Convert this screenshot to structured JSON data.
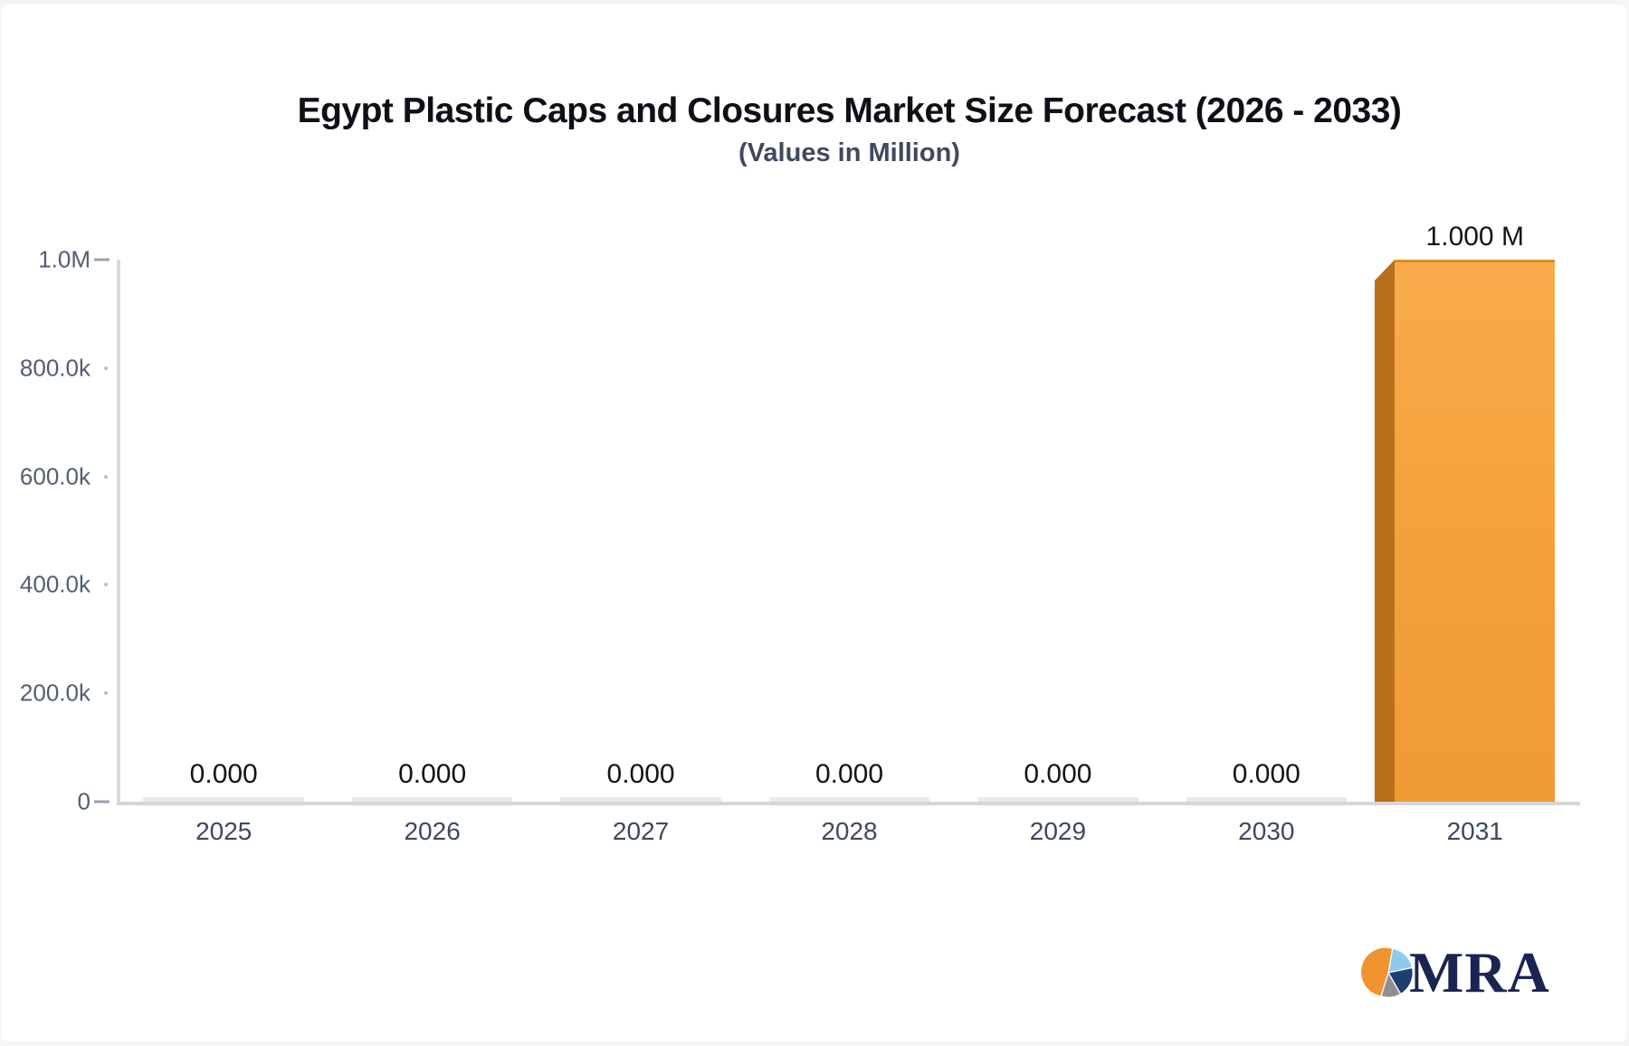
{
  "title": "Egypt Plastic Caps and Closures Market Size Forecast (2026 - 2033)",
  "subtitle": "(Values in Million)",
  "chart_data": {
    "type": "bar",
    "title": "Egypt Plastic Caps and Closures Market Size Forecast (2026 - 2033)",
    "subtitle": "(Values in Million)",
    "categories": [
      "2025",
      "2026",
      "2027",
      "2028",
      "2029",
      "2030",
      "2031"
    ],
    "values": [
      0,
      0,
      0,
      0,
      0,
      0,
      1000000
    ],
    "value_labels": [
      "0.000",
      "0.000",
      "0.000",
      "0.000",
      "0.000",
      "0.000",
      "1.000 M"
    ],
    "xlabel": "",
    "ylabel": "",
    "ylim": [
      0,
      1000000
    ],
    "y_ticks": [
      {
        "label": "1.0M",
        "major": true
      },
      {
        "label": "800.0k",
        "major": false
      },
      {
        "label": "600.0k",
        "major": false
      },
      {
        "label": "400.0k",
        "major": false
      },
      {
        "label": "200.0k",
        "major": false
      },
      {
        "label": "0",
        "major": true
      }
    ],
    "grid": false,
    "legend": "none",
    "bar_color": "#f4a23c",
    "bar_side_color": "#b8701a",
    "zero_bar_color": "#e9eaec"
  },
  "logo": {
    "text": "MRA",
    "pie_colors": [
      "#8ecaf0",
      "#1f3e70",
      "#8e9094",
      "#f0922e"
    ]
  }
}
